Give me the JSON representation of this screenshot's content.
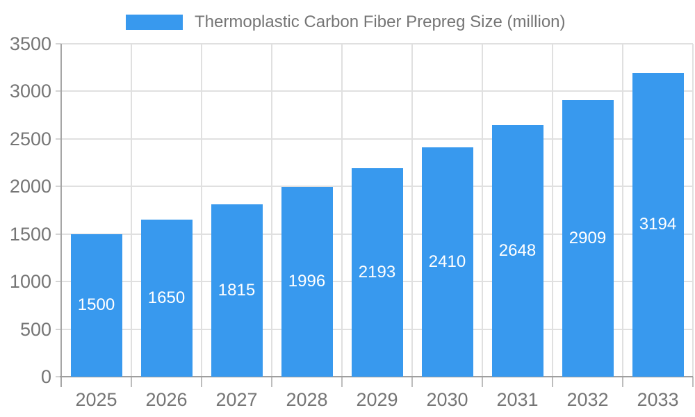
{
  "chart_data": {
    "type": "bar",
    "title": "Thermoplastic Carbon Fiber Prepreg Size (million)",
    "categories": [
      "2025",
      "2026",
      "2027",
      "2028",
      "2029",
      "2030",
      "2031",
      "2032",
      "2033"
    ],
    "values": [
      1500,
      1650,
      1815,
      1996,
      2193,
      2410,
      2648,
      2909,
      3194
    ],
    "xlabel": "",
    "ylabel": "",
    "ylim": [
      0,
      3500
    ],
    "y_ticks": [
      0,
      500,
      1000,
      1500,
      2000,
      2500,
      3000,
      3500
    ],
    "grid": "horizontal and vertical light gray gridlines",
    "legend_position": "top",
    "data_labels": "white values centered inside bars"
  },
  "colors": {
    "bar": "#3899EE",
    "bar_label": "#FFFFFF",
    "axis_text": "#757575",
    "grid_line": "#E0E0E0",
    "axis_line": "#9E9E9E",
    "background": "#FFFFFF"
  }
}
